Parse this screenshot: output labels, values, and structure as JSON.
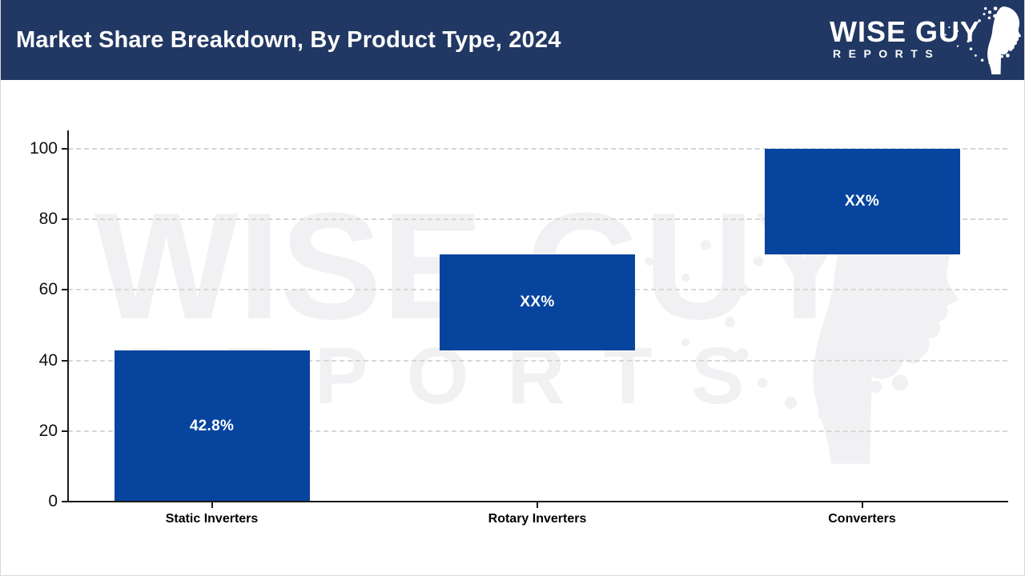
{
  "header": {
    "title": "Market Share Breakdown, By Product Type, 2024",
    "logo": {
      "line1": "WISE GUY",
      "line2": "REPORTS"
    }
  },
  "watermark": {
    "line1": "WISE GUY",
    "line2": "REPORTS"
  },
  "chart_data": {
    "type": "bar",
    "subtype": "stacked-waterfall",
    "title": "Market Share Breakdown, By Product Type, 2024",
    "categories": [
      "Static Inverters",
      "Rotary Inverters",
      "Converters"
    ],
    "bars": [
      {
        "category": "Static Inverters",
        "label": "42.8%",
        "start": 0,
        "end": 42.8
      },
      {
        "category": "Rotary Inverters",
        "label": "XX%",
        "start": 42.8,
        "end": 70
      },
      {
        "category": "Converters",
        "label": "XX%",
        "start": 70,
        "end": 100
      }
    ],
    "y_ticks": [
      0,
      20,
      40,
      60,
      80,
      100
    ],
    "ylim": [
      0,
      100
    ],
    "xlabel": "",
    "ylabel": "",
    "grid": "horizontal-dashed",
    "legend": "none",
    "bar_color": "#07449e",
    "value_label_color": "#ffffff"
  },
  "colors": {
    "header_bg": "#223864",
    "bar": "#07449e",
    "grid": "#d7d7d7",
    "axis": "#1a1a1a",
    "watermark": "#f1f1f3"
  }
}
